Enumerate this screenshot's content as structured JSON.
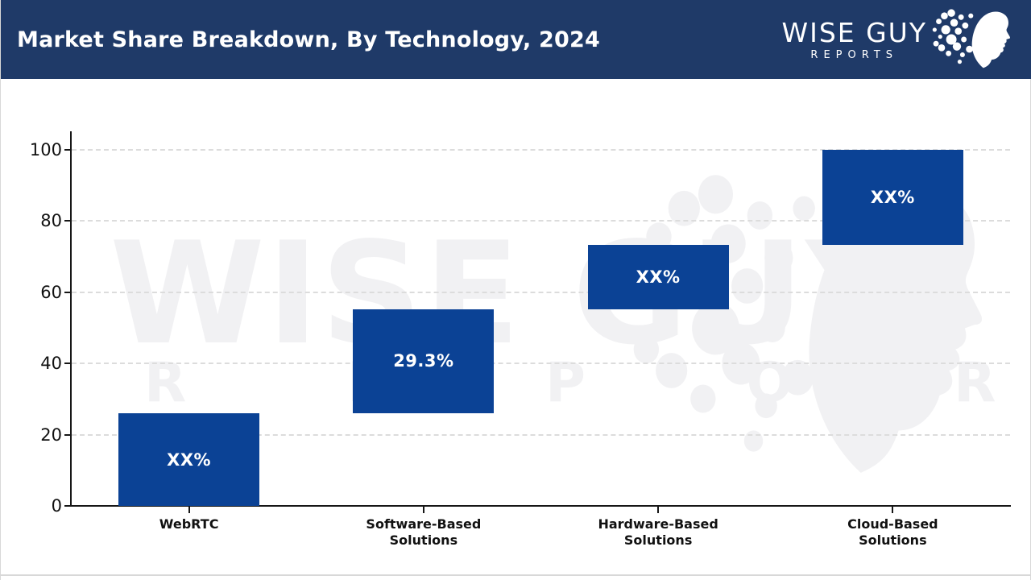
{
  "header": {
    "title": "Market Share Breakdown, By Technology, 2024",
    "logo_line1": "WISE GUY",
    "logo_line2": "REPORTS"
  },
  "watermark": {
    "line1": "WISE GUY",
    "line2": "R E P O R T S"
  },
  "colors": {
    "header_bg": "#1f3a68",
    "bar": "#0b4295",
    "grid": "#dcdcdc",
    "axis": "#161616",
    "watermark": "#f1f1f3"
  },
  "chart_data": {
    "type": "bar",
    "subtype": "floating-waterfall",
    "title": "Market Share Breakdown, By Technology, 2024",
    "categories": [
      "WebRTC",
      "Software-Based Solutions",
      "Hardware-Based Solutions",
      "Cloud-Based Solutions"
    ],
    "category_lines": [
      [
        "WebRTC"
      ],
      [
        "Software-Based",
        "Solutions"
      ],
      [
        "Hardware-Based",
        "Solutions"
      ],
      [
        "Cloud-Based",
        "Solutions"
      ]
    ],
    "series": [
      {
        "name": "Market share (%)",
        "segments": [
          {
            "category": "WebRTC",
            "start": 0,
            "end": 26,
            "height": 26,
            "label": "XX%"
          },
          {
            "category": "Software-Based Solutions",
            "start": 26,
            "end": 55.3,
            "height": 29.3,
            "label": "29.3%"
          },
          {
            "category": "Hardware-Based Solutions",
            "start": 55.3,
            "end": 73.3,
            "height": 18,
            "label": "XX%"
          },
          {
            "category": "Cloud-Based Solutions",
            "start": 73.3,
            "end": 100,
            "height": 26.7,
            "label": "XX%"
          }
        ]
      }
    ],
    "xlabel": "",
    "ylabel": "",
    "ylim": [
      0,
      100
    ],
    "yticks": [
      0,
      20,
      40,
      60,
      80,
      100
    ],
    "grid": "horizontal-dashed",
    "legend": "none"
  }
}
